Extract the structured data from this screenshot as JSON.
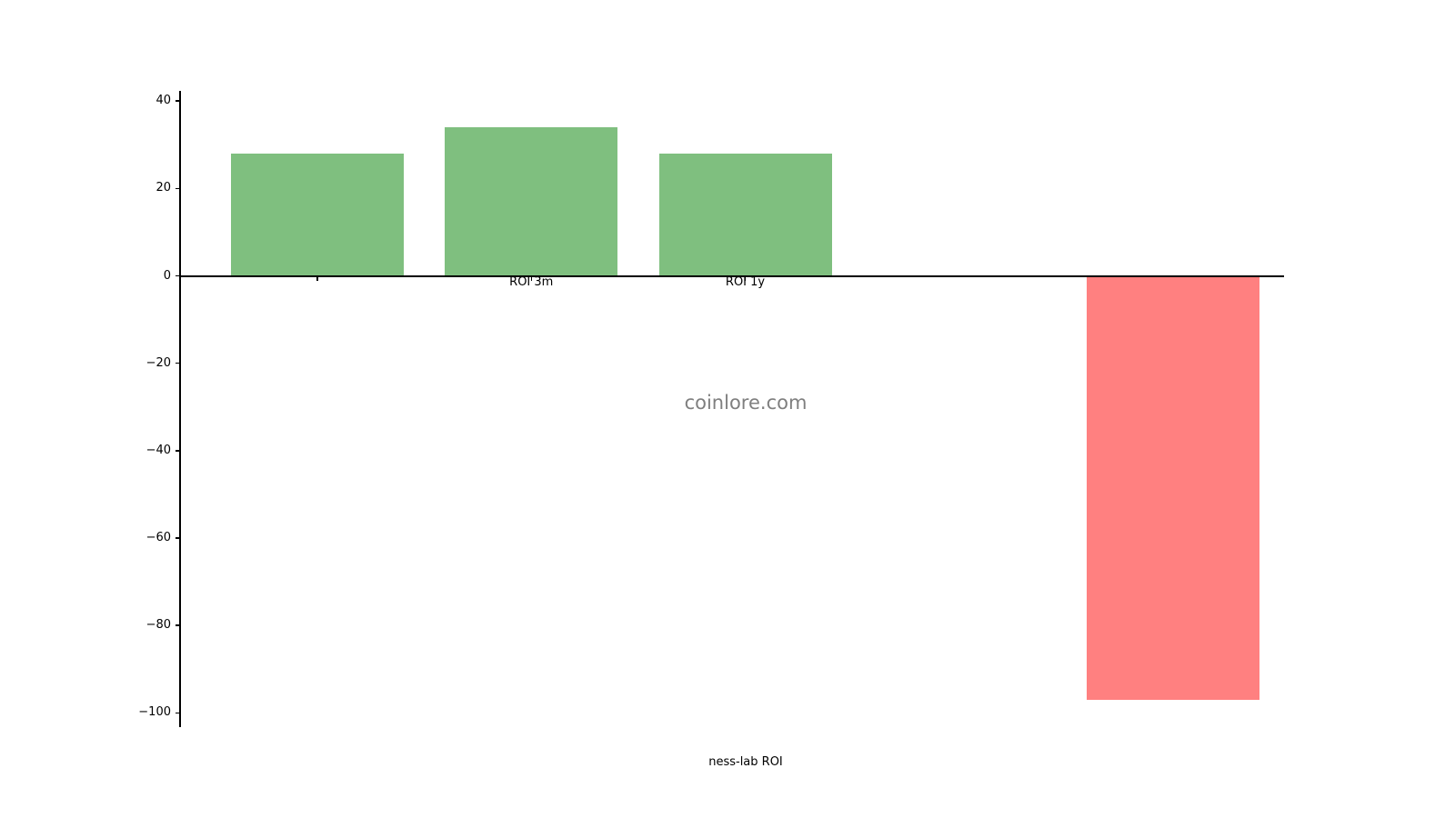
{
  "watermark": "coinlore.com",
  "chart_data": {
    "type": "bar",
    "title": "",
    "xlabel": "ness-lab ROI",
    "ylabel": "",
    "categories": [
      "",
      "ROI 3m",
      "ROI 1y",
      "",
      ""
    ],
    "values": [
      28,
      34,
      28,
      null,
      -97
    ],
    "bar_colors": [
      "#7fbf7f",
      "#7fbf7f",
      "#7fbf7f",
      null,
      "#ff8080"
    ],
    "x_ticks_visible": [
      true,
      true,
      true,
      false,
      false
    ],
    "y_tick_values": [
      40,
      20,
      0,
      -20,
      -40,
      -60,
      -80,
      -100
    ],
    "y_tick_labels": [
      "40",
      "20",
      "0",
      "−20",
      "−40",
      "−60",
      "−80",
      "−100"
    ],
    "ylim": [
      -103.3,
      42.3
    ],
    "grid": false,
    "legend_position": "none",
    "colors": {
      "positive": "#7fbf7f",
      "negative": "#ff8080",
      "axis": "#000000",
      "watermark": "#7f7f7f"
    }
  }
}
